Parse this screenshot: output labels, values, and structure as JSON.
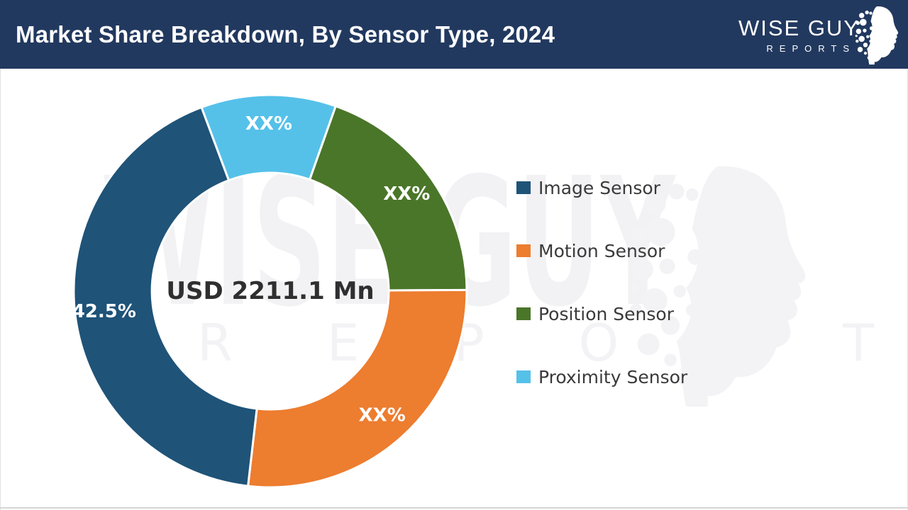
{
  "header": {
    "title": "Market Share Breakdown, By Sensor Type, 2024",
    "logo": {
      "wordmark": "WISE GUY",
      "subtitle": "REPORTS"
    }
  },
  "watermark": {
    "wordmark": "WISE GUY",
    "subtitle": "R E P O R T S"
  },
  "chart_data": {
    "type": "pie",
    "title": "Market Share Breakdown, By Sensor Type, 2024",
    "center_label": "USD 2211.1 Mn",
    "start_angle_deg": -20.5,
    "legend_position": "right",
    "segments": [
      {
        "label": "Proximity Sensor",
        "display_label": "XX%",
        "percent": 11.1,
        "color": "#55c1e9"
      },
      {
        "label": "Position Sensor",
        "display_label": "XX%",
        "percent": 19.5,
        "color": "#4a7629"
      },
      {
        "label": "Motion Sensor",
        "display_label": "XX%",
        "percent": 26.9,
        "color": "#ed7d2f"
      },
      {
        "label": "Image Sensor",
        "display_label": "42.5%",
        "percent": 42.5,
        "color": "#1f5378"
      }
    ]
  },
  "legend": {
    "items": [
      {
        "label": "Image Sensor",
        "color": "#1f5378"
      },
      {
        "label": "Motion Sensor",
        "color": "#ed7d2f"
      },
      {
        "label": "Position Sensor",
        "color": "#4a7629"
      },
      {
        "label": "Proximity Sensor",
        "color": "#55c1e9"
      }
    ]
  },
  "colors": {
    "header_background": "#22395f",
    "title_text": "#ffffff",
    "legend_text": "#3a3a3a",
    "center_text": "#2f2f2f",
    "watermark": "#f2f2f5"
  }
}
